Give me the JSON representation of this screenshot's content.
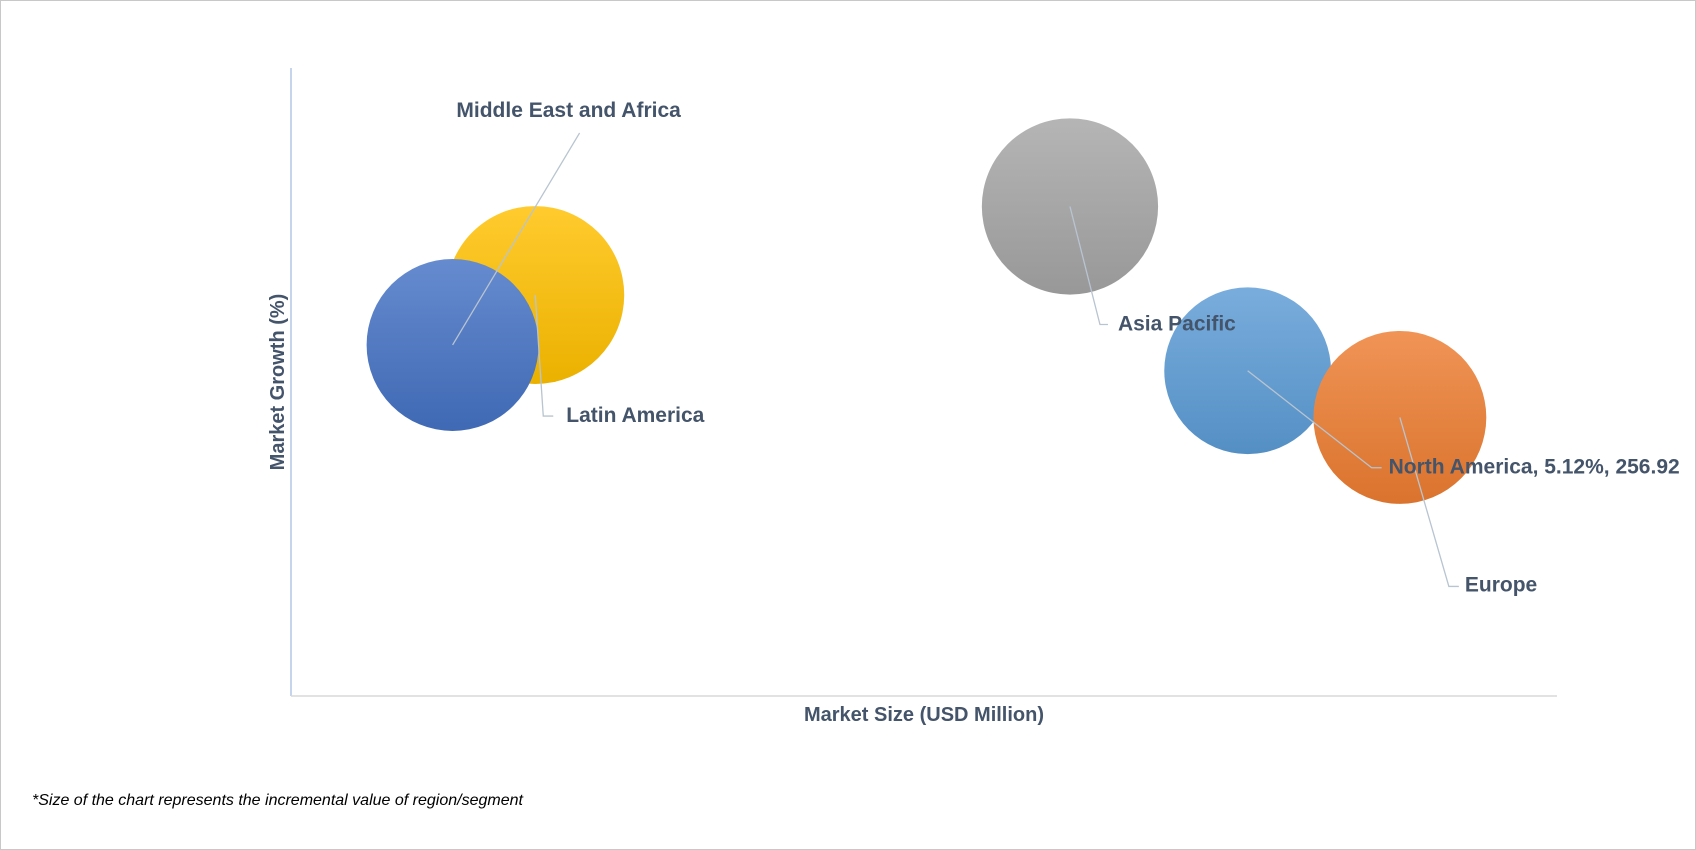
{
  "chart_data": {
    "type": "bubble",
    "xlabel": "Market Size (USD Million)",
    "ylabel": "Market Growth (%)",
    "x_ticks": "none",
    "y_ticks": "none",
    "grid": false,
    "legend": "none",
    "points": [
      {
        "label": "Middle East and Africa",
        "x": 43.4,
        "y": 5.28,
        "size": 1.0,
        "color": "#595959"
      },
      {
        "label": "Latin America",
        "x": 65.6,
        "y": 5.59,
        "size": 1.07,
        "color": "#ffc000"
      },
      {
        "label": "Asia Pacific",
        "x": 209.2,
        "y": 6.14,
        "size": 1.05,
        "color": "#a5a5a5"
      },
      {
        "label": "North America",
        "x": 256.92,
        "y": 5.12,
        "size": 0.94,
        "color": "#5b9bd5",
        "data_label": "North America, 5.12%, 256.92"
      },
      {
        "label": "Europe",
        "x": 297.8,
        "y": 4.83,
        "size": 1.01,
        "color": "#ed7d31"
      }
    ],
    "bubble_draw_order": [
      "Latin America",
      "Middle East and Africa",
      "Asia Pacific",
      "North America",
      "Europe"
    ],
    "bubble_fill_overrides": {
      "Middle East and Africa": "#4472c4"
    },
    "footnote": "*Size of the chart represents the incremental value of region/segment"
  }
}
